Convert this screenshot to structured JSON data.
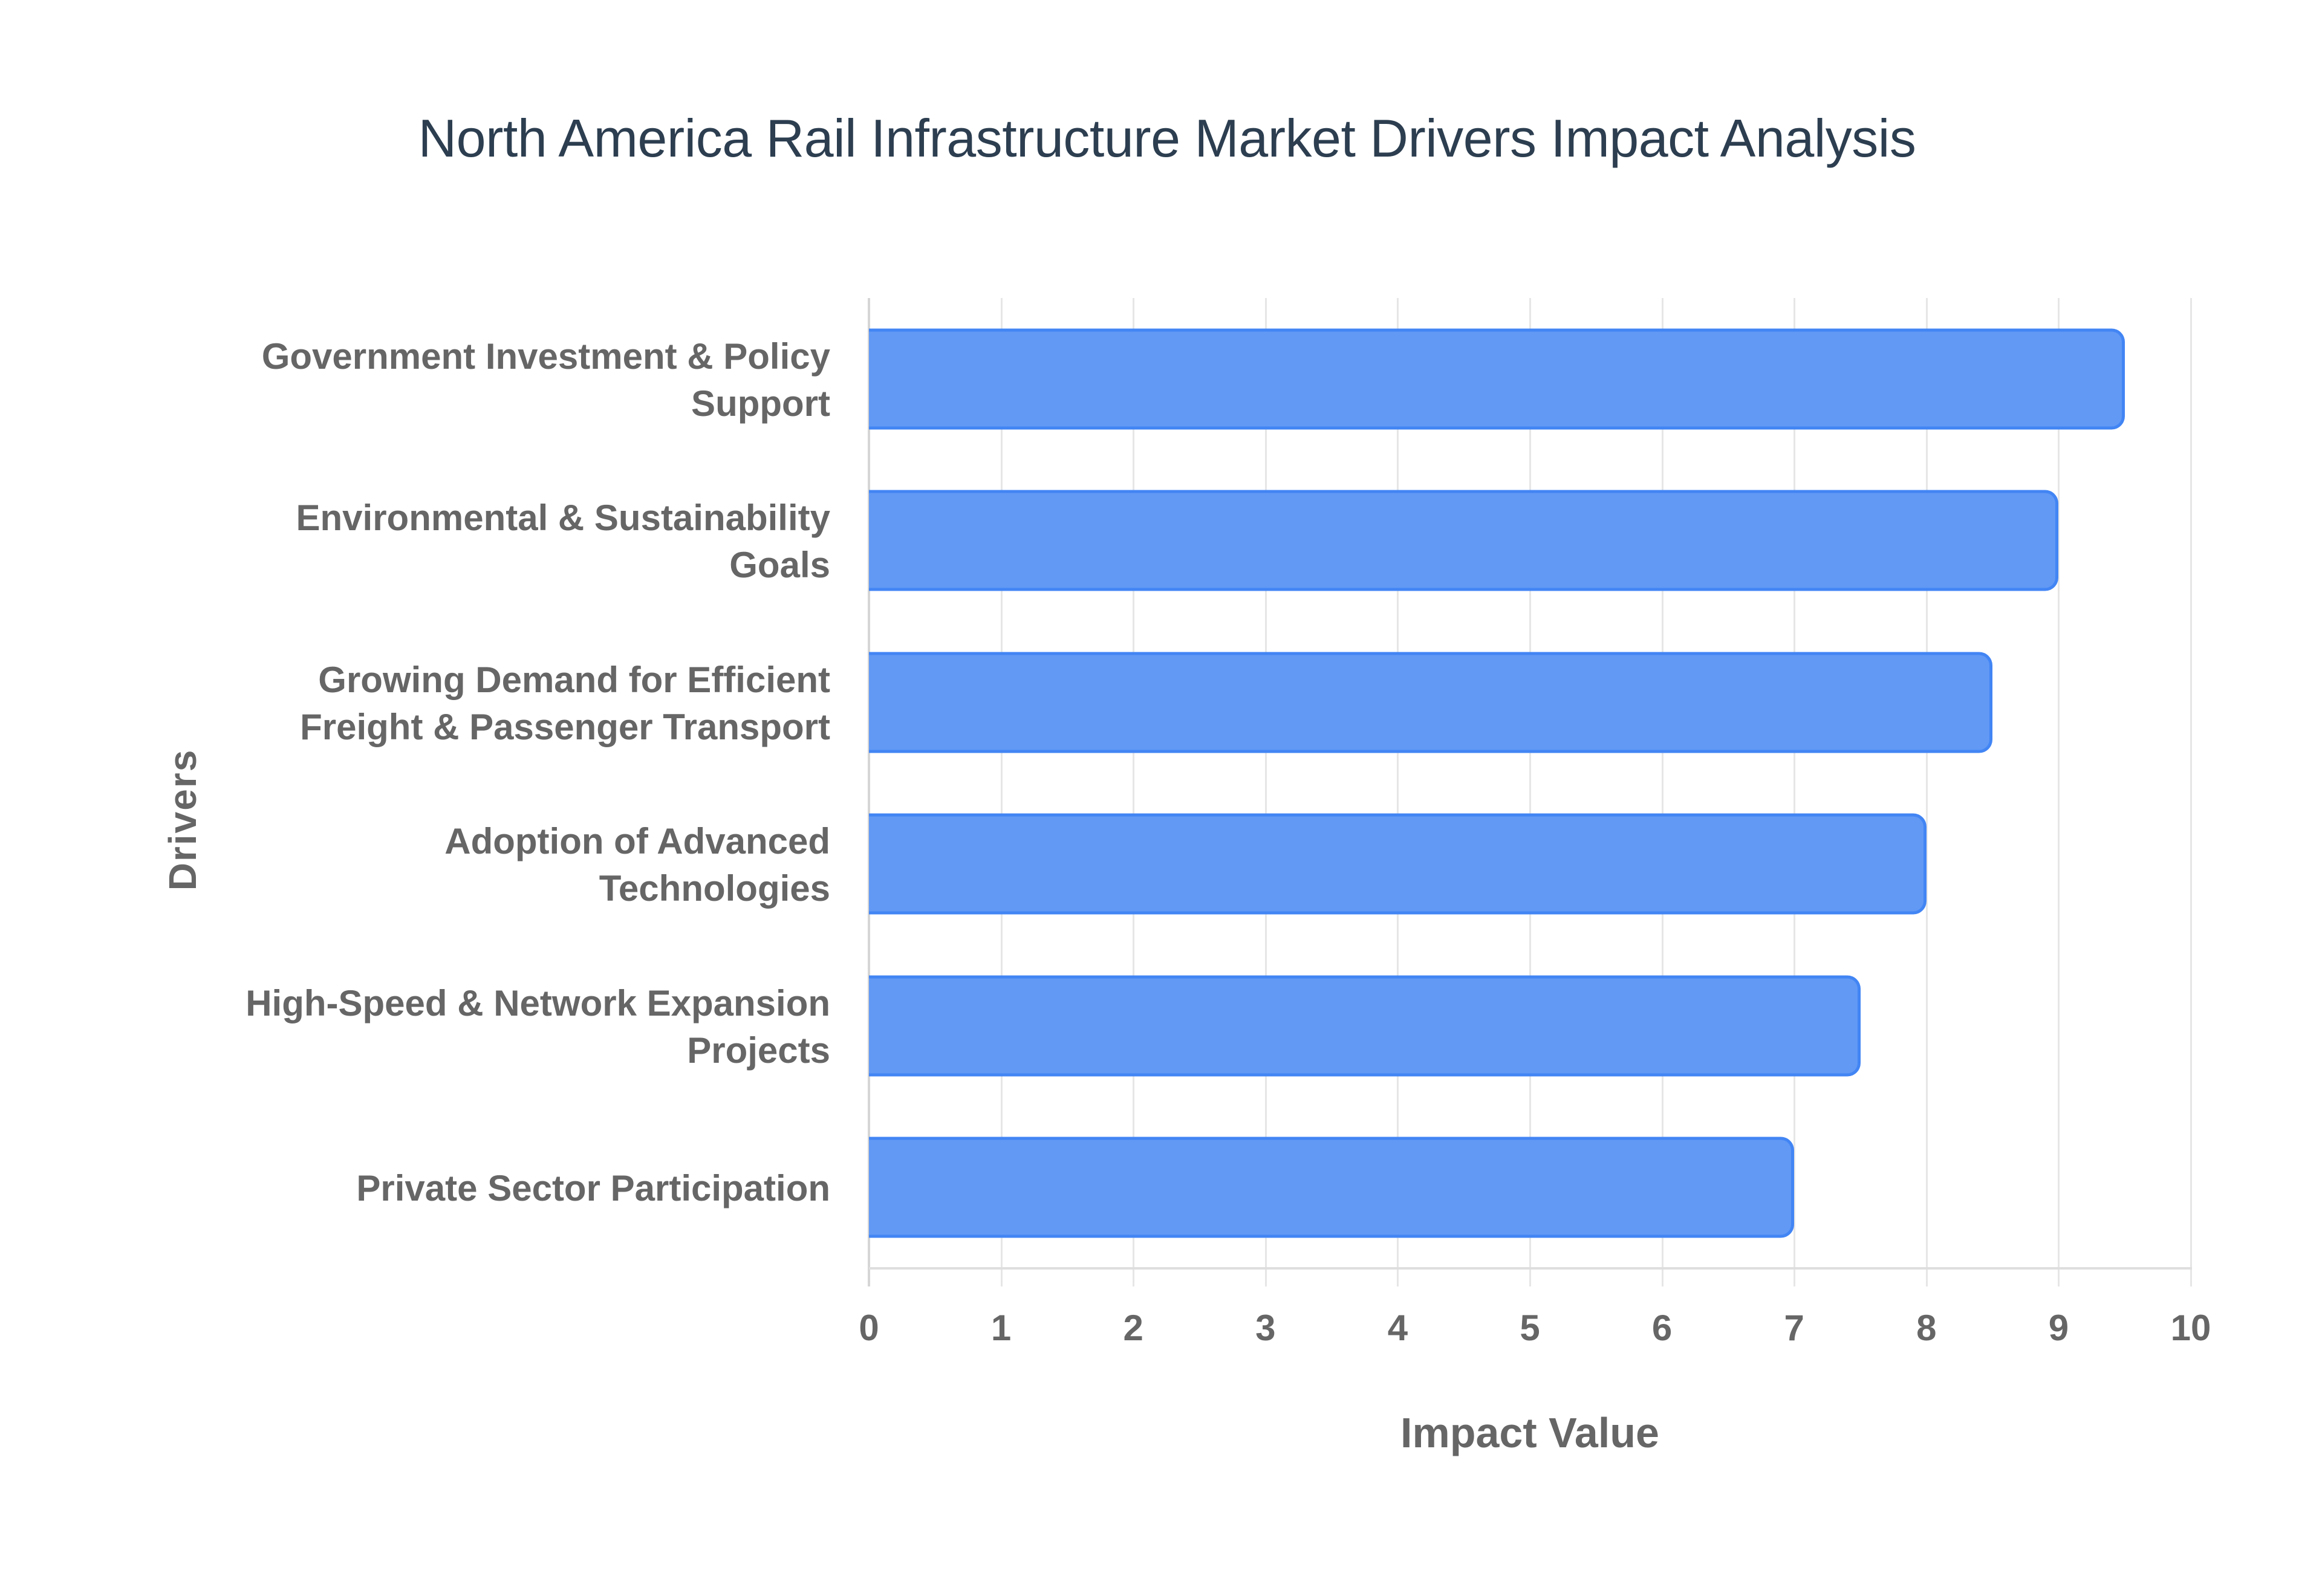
{
  "title": "North America Rail Infrastructure Market Drivers Impact Analysis",
  "axes": {
    "x_title": "Impact Value",
    "y_title": "Drivers",
    "x_ticks": [
      "0",
      "1",
      "2",
      "3",
      "4",
      "5",
      "6",
      "7",
      "8",
      "9",
      "10"
    ]
  },
  "colors": {
    "bar_fill": "#6199f5",
    "bar_border": "#4285f4",
    "title": "#2c3e50",
    "axis_text": "#666666",
    "grid": "#e6e6e6"
  },
  "chart_data": {
    "type": "bar",
    "orientation": "horizontal",
    "title": "North America Rail Infrastructure Market Drivers Impact Analysis",
    "xlabel": "Impact Value",
    "ylabel": "Drivers",
    "xlim": [
      0,
      10
    ],
    "x_ticks": [
      0,
      1,
      2,
      3,
      4,
      5,
      6,
      7,
      8,
      9,
      10
    ],
    "grid": true,
    "legend": null,
    "categories": [
      "Government Investment & Policy Support",
      "Environmental & Sustainability Goals",
      "Growing Demand for Efficient Freight & Passenger Transport",
      "Adoption of Advanced Technologies",
      "High-Speed & Network Expansion Projects",
      "Private Sector Participation"
    ],
    "category_lines": [
      [
        "Government Investment & Policy",
        "Support"
      ],
      [
        "Environmental & Sustainability",
        "Goals"
      ],
      [
        "Growing Demand for Efficient",
        "Freight & Passenger Transport"
      ],
      [
        "Adoption of Advanced",
        "Technologies"
      ],
      [
        "High-Speed & Network Expansion",
        "Projects"
      ],
      [
        "Private Sector Participation"
      ]
    ],
    "values": [
      9.5,
      9.0,
      8.5,
      8.0,
      7.5,
      7.0
    ]
  }
}
